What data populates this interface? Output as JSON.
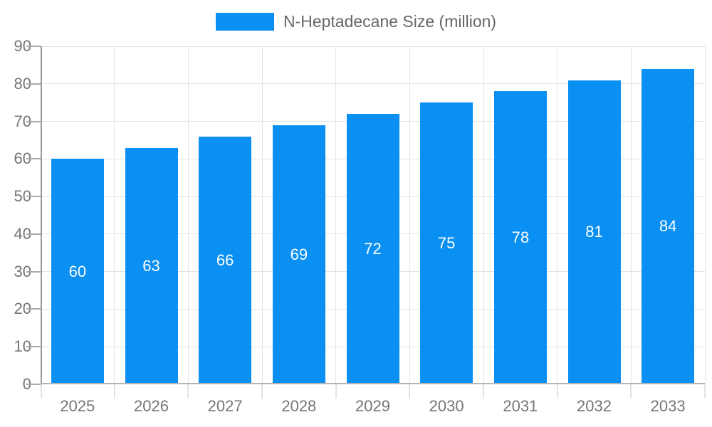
{
  "chart_data": {
    "type": "bar",
    "title": "",
    "legend_label": "N-Heptadecane Size (million)",
    "legend_position": "top",
    "categories": [
      "2025",
      "2026",
      "2027",
      "2028",
      "2029",
      "2030",
      "2031",
      "2032",
      "2033"
    ],
    "series": [
      {
        "name": "N-Heptadecane Size (million)",
        "values": [
          60,
          63,
          66,
          69,
          72,
          75,
          78,
          81,
          84
        ]
      }
    ],
    "value_labels_shown": true,
    "xlabel": "",
    "ylabel": "",
    "ylim": [
      0,
      90
    ],
    "ytick_step": 10,
    "yticks": [
      0,
      10,
      20,
      30,
      40,
      50,
      60,
      70,
      80,
      90
    ],
    "grid": true,
    "colors": {
      "bar": "#0a8ff2",
      "value_label": "#ffffff",
      "axis_text": "#757575",
      "legend_text": "#666666",
      "gridline": "#e4e4e4",
      "background": "#ffffff"
    }
  }
}
